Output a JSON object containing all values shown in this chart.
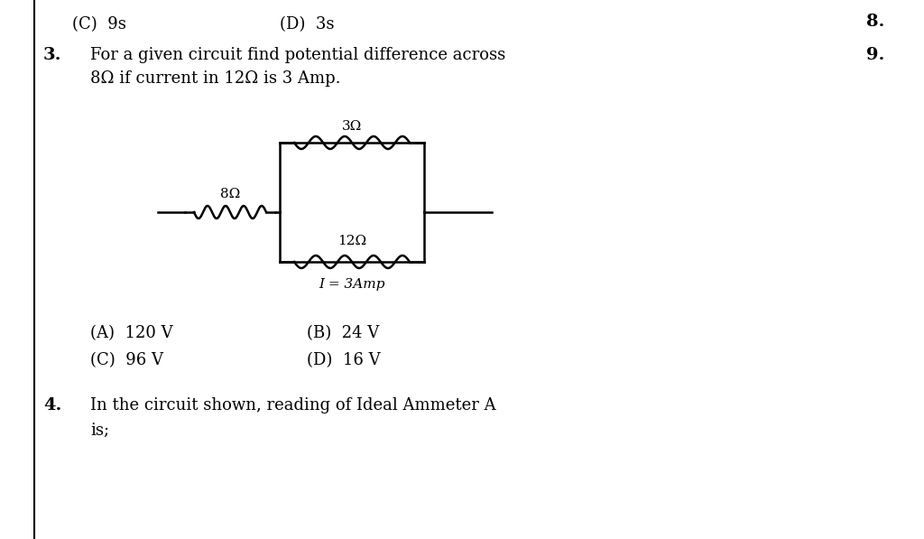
{
  "bg_color": "#ffffff",
  "text_color": "#000000",
  "top_left_text": "(C)  9s",
  "top_center_text": "(D)  3s",
  "top_right_number": "8.",
  "question_number": "3.",
  "question_text_line1": "For a given circuit find potential difference across",
  "question_text_line2": "8Ω if current in 12Ω is 3 Amp.",
  "label_3ohm": "3Ω",
  "label_8ohm": "8Ω",
  "label_12ohm": "12Ω",
  "label_current": "I = 3Amp",
  "option_A": "(A)  120 V",
  "option_B": "(B)  24 V",
  "option_C": "(C)  96 V",
  "option_D": "(D)  16 V",
  "question4_number": "4.",
  "question4_text_line1": "In the circuit shown, reading of Ideal Ammeter A",
  "question4_text_line2": "is;",
  "right_number2": "9.",
  "font_size_main": 13,
  "font_size_circuit": 11,
  "font_size_bold": 14
}
